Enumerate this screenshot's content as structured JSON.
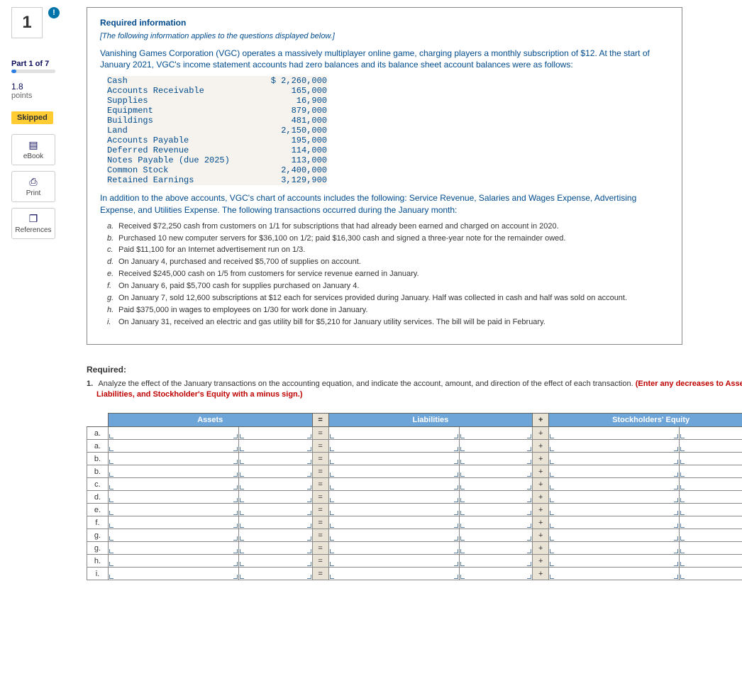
{
  "sidebar": {
    "question_number": "1",
    "part_label": "Part 1 of 7",
    "score_value": "1.8",
    "score_points_label": "points",
    "skipped_label": "Skipped",
    "buttons": {
      "ebook": "eBook",
      "print": "Print",
      "references": "References"
    }
  },
  "content": {
    "required_info_heading": "Required information",
    "applies_note": "[The following information applies to the questions displayed below.]",
    "intro_para": "Vanishing Games Corporation (VGC) operates a massively multiplayer online game, charging players a monthly subscription of $12. At the start of January 2021, VGC's income statement accounts had zero balances and its balance sheet account balances were as follows:",
    "balances": [
      {
        "label": "Cash",
        "value": "$ 2,260,000"
      },
      {
        "label": "Accounts Receivable",
        "value": "165,000"
      },
      {
        "label": "Supplies",
        "value": "16,900"
      },
      {
        "label": "Equipment",
        "value": "879,000"
      },
      {
        "label": "Buildings",
        "value": "481,000"
      },
      {
        "label": "Land",
        "value": "2,150,000"
      },
      {
        "label": "Accounts Payable",
        "value": "195,000"
      },
      {
        "label": "Deferred Revenue",
        "value": "114,000"
      },
      {
        "label": "Notes Payable (due 2025)",
        "value": "113,000"
      },
      {
        "label": "Common Stock",
        "value": "2,400,000"
      },
      {
        "label": "Retained Earnings",
        "value": "3,129,900"
      }
    ],
    "after_para": "In addition to the above accounts, VGC's chart of accounts includes the following: Service Revenue, Salaries and Wages Expense, Advertising Expense, and Utilities Expense. The following transactions occurred during the January month:",
    "transactions": [
      {
        "marker": "a.",
        "text": "Received $72,250 cash from customers on 1/1 for subscriptions that had already been earned and charged on account in 2020."
      },
      {
        "marker": "b.",
        "text": "Purchased 10 new computer servers for $36,100 on 1/2; paid $16,300 cash and signed a three-year note for the remainder owed."
      },
      {
        "marker": "c.",
        "text": "Paid $11,100 for an Internet advertisement run on 1/3."
      },
      {
        "marker": "d.",
        "text": "On January 4, purchased and received $5,700 of supplies on account."
      },
      {
        "marker": "e.",
        "text": "Received $245,000 cash on 1/5 from customers for service revenue earned in January."
      },
      {
        "marker": "f.",
        "text": "On January 6, paid $5,700 cash for supplies purchased on January 4."
      },
      {
        "marker": "g.",
        "text": "On January 7, sold 12,600 subscriptions at $12 each for services provided during January. Half was collected in cash and half was sold on account."
      },
      {
        "marker": "h.",
        "text": "Paid $375,000 in wages to employees on 1/30 for work done in January."
      },
      {
        "marker": "i.",
        "text": "On January 31, received an electric and gas utility bill for $5,210 for January utility services. The bill will be paid in February."
      }
    ]
  },
  "required": {
    "heading": "Required:",
    "item_number": "1.",
    "instruction_plain": "Analyze the effect of the January transactions on the accounting equation, and indicate the account, amount, and direction of the effect of each transaction. ",
    "instruction_red": "(Enter any decreases to Assets, Liabilities, and Stockholder's Equity with a minus sign.)"
  },
  "table": {
    "headers": {
      "assets": "Assets",
      "liabilities": "Liabilities",
      "equity": "Stockholders' Equity"
    },
    "eq_sign": "=",
    "plus_sign": "+",
    "row_labels": [
      "a.",
      "a.",
      "b.",
      "b.",
      "c.",
      "d.",
      "e.",
      "f.",
      "g.",
      "g.",
      "h.",
      "i."
    ]
  }
}
